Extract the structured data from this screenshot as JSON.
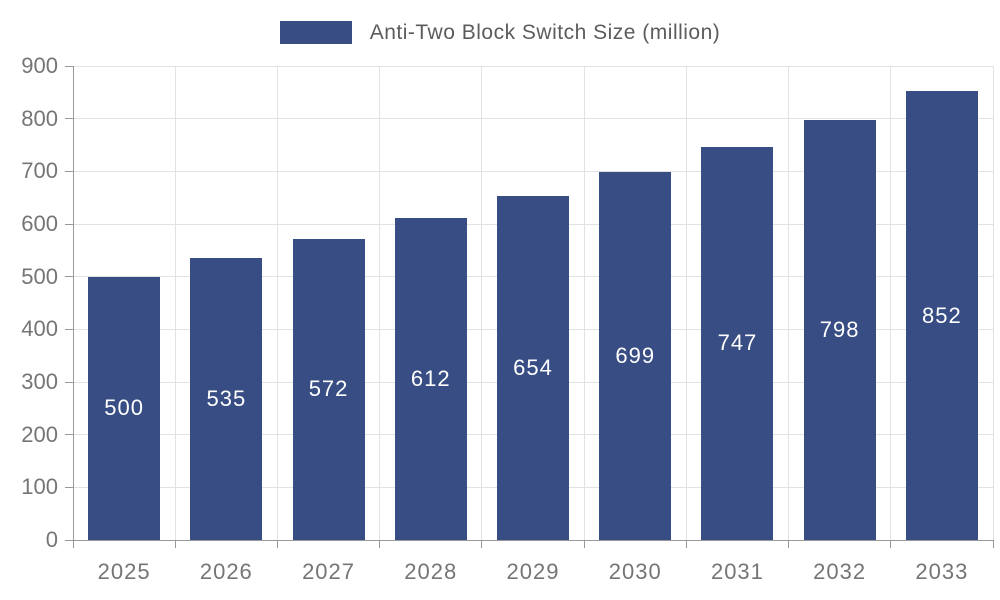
{
  "legend": {
    "label": "Anti-Two Block Switch Size (million)"
  },
  "colors": {
    "bar": "#374d84",
    "grid": "#e2e2e2",
    "axis": "#999999",
    "axis_label": "#757575",
    "value_label": "#ffffff",
    "legend_text": "#5c5c5c"
  },
  "chart_data": {
    "type": "bar",
    "categories": [
      "2025",
      "2026",
      "2027",
      "2028",
      "2029",
      "2030",
      "2031",
      "2032",
      "2033"
    ],
    "values": [
      500,
      535,
      572,
      612,
      654,
      699,
      747,
      798,
      852
    ],
    "title": "Anti-Two Block Switch Size (million)",
    "xlabel": "",
    "ylabel": "",
    "ylim": [
      0,
      900
    ],
    "ytick_step": 100,
    "grid": true,
    "legend_position": "top",
    "value_labels": "inside-center"
  }
}
